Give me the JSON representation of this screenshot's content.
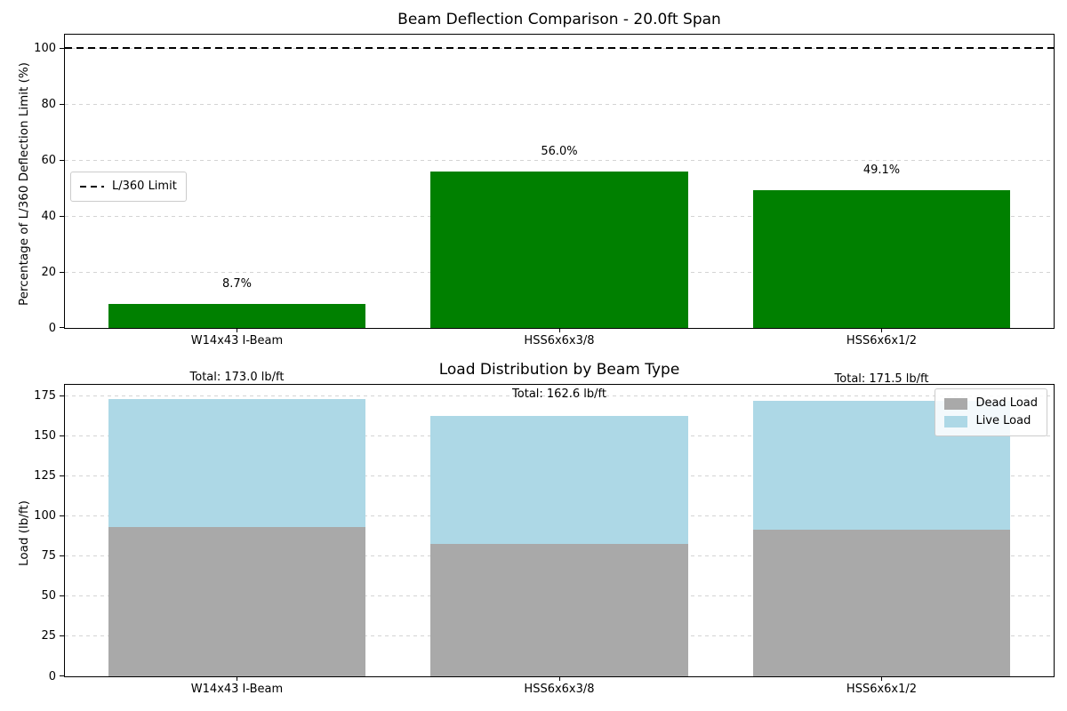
{
  "figure": {
    "background": "#ffffff"
  },
  "chart_data": [
    {
      "type": "bar",
      "title": "Beam Deflection Comparison - 20.0ft Span",
      "xlabel": "",
      "ylabel": "Percentage of L/360 Deflection Limit (%)",
      "categories": [
        "W14x43 I-Beam",
        "HSS6x6x3/8",
        "HSS6x6x1/2"
      ],
      "values": [
        8.7,
        56.0,
        49.1
      ],
      "value_labels": [
        "8.7%",
        "56.0%",
        "49.1%"
      ],
      "bar_color": "#008000",
      "yticks": [
        0,
        20,
        40,
        60,
        80,
        100
      ],
      "ylim": [
        0,
        104.8
      ],
      "grid": "dashed-horizontal",
      "reference_line": {
        "value": 100,
        "color": "#000000",
        "style": "dashed"
      },
      "legend": {
        "position": "center-left",
        "entries": [
          {
            "label": "L/360 Limit",
            "swatch": "dashed-line",
            "color": "#000000"
          }
        ]
      }
    },
    {
      "type": "stacked-bar",
      "title": "Load Distribution by Beam Type",
      "xlabel": "",
      "ylabel": "Load (lb/ft)",
      "categories": [
        "W14x43 I-Beam",
        "HSS6x6x3/8",
        "HSS6x6x1/2"
      ],
      "series": [
        {
          "name": "Dead Load",
          "color": "#a9a9a9",
          "values": [
            93.0,
            82.6,
            91.5
          ]
        },
        {
          "name": "Live Load",
          "color": "#add8e6",
          "values": [
            80.0,
            80.0,
            80.0
          ]
        }
      ],
      "totals": [
        173.0,
        162.6,
        171.5
      ],
      "total_labels": [
        "Total: 173.0 lb/ft",
        "Total: 162.6 lb/ft",
        "Total: 171.5 lb/ft"
      ],
      "yticks": [
        0,
        25,
        50,
        75,
        100,
        125,
        150,
        175
      ],
      "ylim": [
        0,
        181.7
      ],
      "grid": "dashed-horizontal",
      "legend": {
        "position": "top-right",
        "entries": [
          {
            "label": "Dead Load",
            "swatch": "patch",
            "color": "#a9a9a9"
          },
          {
            "label": "Live Load",
            "swatch": "patch",
            "color": "#add8e6"
          }
        ]
      }
    }
  ]
}
